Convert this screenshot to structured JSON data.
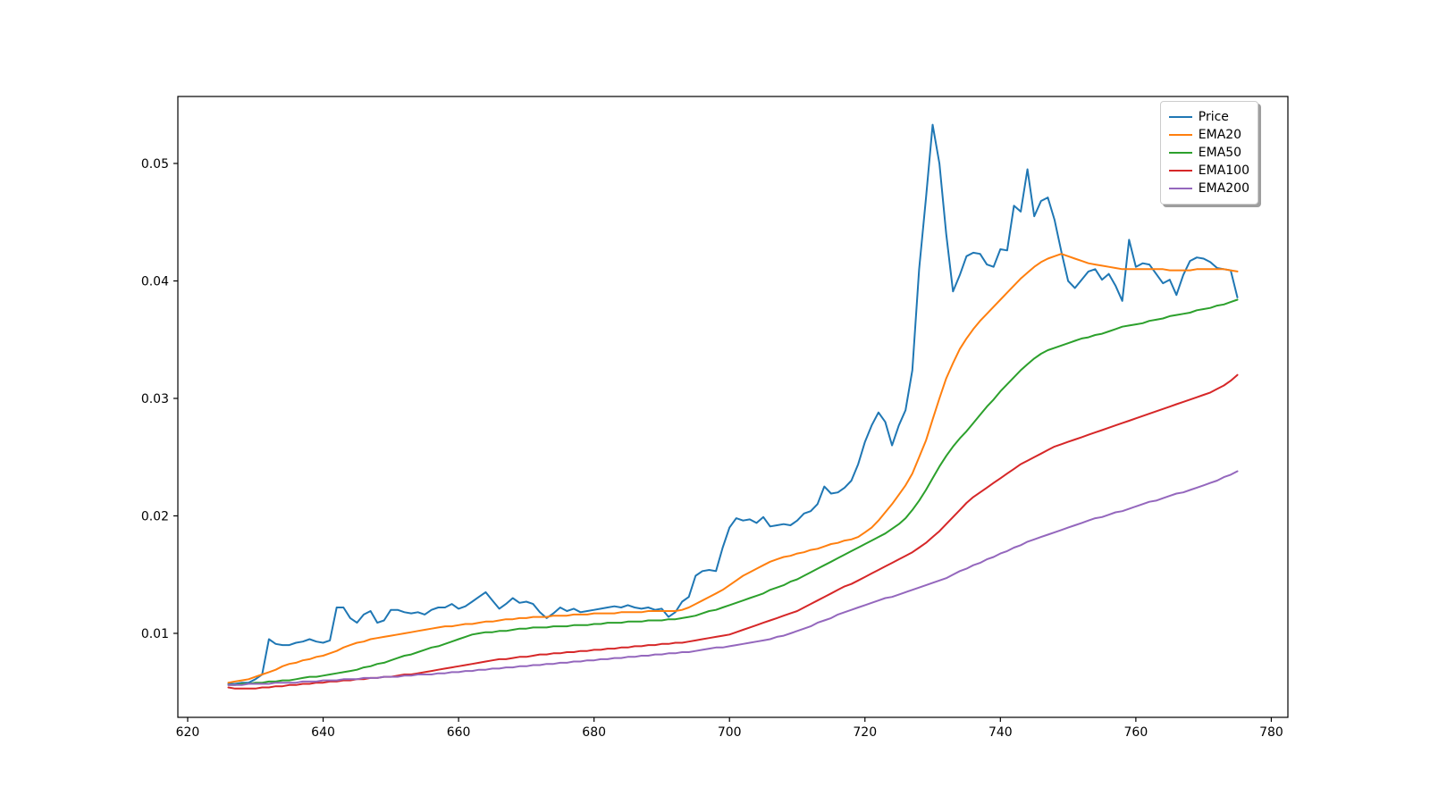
{
  "figure": {
    "background": "#ffffff"
  },
  "chart_data": {
    "type": "line",
    "title": "",
    "xlabel": "",
    "ylabel": "",
    "grid": false,
    "legend_position": "upper right",
    "xlim": [
      618.55,
      782.45
    ],
    "ylim": [
      0.00285,
      0.0557
    ],
    "x_ticks": [
      620,
      640,
      660,
      680,
      700,
      720,
      740,
      760,
      780
    ],
    "y_ticks": [
      0.01,
      0.02,
      0.03,
      0.04,
      0.05
    ],
    "x_start": 626,
    "x_step": 1,
    "series": [
      {
        "name": "Price",
        "color": "#1f77b4",
        "values": [
          0.0057,
          0.0057,
          0.0058,
          0.0058,
          0.0061,
          0.0065,
          0.0095,
          0.0091,
          0.009,
          0.009,
          0.0092,
          0.0093,
          0.0095,
          0.0093,
          0.0092,
          0.0094,
          0.0122,
          0.0122,
          0.0113,
          0.0109,
          0.0116,
          0.0119,
          0.0109,
          0.0111,
          0.012,
          0.012,
          0.0118,
          0.0117,
          0.0118,
          0.0116,
          0.012,
          0.0122,
          0.0122,
          0.0125,
          0.0121,
          0.0123,
          0.0127,
          0.0131,
          0.0135,
          0.0128,
          0.0121,
          0.0125,
          0.013,
          0.0126,
          0.0127,
          0.0125,
          0.0118,
          0.0113,
          0.0117,
          0.0122,
          0.0119,
          0.0121,
          0.0118,
          0.0119,
          0.012,
          0.0121,
          0.0122,
          0.0123,
          0.0122,
          0.0124,
          0.0122,
          0.0121,
          0.0122,
          0.012,
          0.0121,
          0.0114,
          0.0118,
          0.0127,
          0.0131,
          0.0149,
          0.0153,
          0.0154,
          0.0153,
          0.0173,
          0.019,
          0.0198,
          0.0196,
          0.0197,
          0.0194,
          0.0199,
          0.0191,
          0.0192,
          0.0193,
          0.0192,
          0.0196,
          0.0202,
          0.0204,
          0.021,
          0.0225,
          0.0219,
          0.022,
          0.0224,
          0.023,
          0.0244,
          0.0263,
          0.0277,
          0.0288,
          0.028,
          0.026,
          0.0277,
          0.029,
          0.0324,
          0.041,
          0.047,
          0.0533,
          0.05,
          0.044,
          0.0391,
          0.0405,
          0.0421,
          0.0424,
          0.0423,
          0.0414,
          0.0412,
          0.0427,
          0.0426,
          0.0464,
          0.0459,
          0.0495,
          0.0455,
          0.0468,
          0.0471,
          0.0452,
          0.0425,
          0.04,
          0.0394,
          0.0401,
          0.0408,
          0.041,
          0.0401,
          0.0406,
          0.0396,
          0.0383,
          0.0435,
          0.0412,
          0.0415,
          0.0414,
          0.0406,
          0.0398,
          0.0401,
          0.0388,
          0.0405,
          0.0417,
          0.042,
          0.0419,
          0.0416,
          0.0411,
          0.041,
          0.0409,
          0.0386
        ]
      },
      {
        "name": "EMA20",
        "color": "#ff7f0e",
        "values": [
          0.0058,
          0.0059,
          0.006,
          0.0061,
          0.0063,
          0.0065,
          0.0067,
          0.0069,
          0.0072,
          0.0074,
          0.0075,
          0.0077,
          0.0078,
          0.008,
          0.0081,
          0.0083,
          0.0085,
          0.0088,
          0.009,
          0.0092,
          0.0093,
          0.0095,
          0.0096,
          0.0097,
          0.0098,
          0.0099,
          0.01,
          0.0101,
          0.0102,
          0.0103,
          0.0104,
          0.0105,
          0.0106,
          0.0106,
          0.0107,
          0.0108,
          0.0108,
          0.0109,
          0.011,
          0.011,
          0.0111,
          0.0112,
          0.0112,
          0.0113,
          0.0113,
          0.0114,
          0.0114,
          0.0114,
          0.0115,
          0.0115,
          0.0115,
          0.0116,
          0.0116,
          0.0116,
          0.0117,
          0.0117,
          0.0117,
          0.0117,
          0.0118,
          0.0118,
          0.0118,
          0.0118,
          0.0119,
          0.0119,
          0.0119,
          0.0119,
          0.0119,
          0.012,
          0.0122,
          0.0125,
          0.0128,
          0.0131,
          0.0134,
          0.0137,
          0.0141,
          0.0145,
          0.0149,
          0.0152,
          0.0155,
          0.0158,
          0.0161,
          0.0163,
          0.0165,
          0.0166,
          0.0168,
          0.0169,
          0.0171,
          0.0172,
          0.0174,
          0.0176,
          0.0177,
          0.0179,
          0.018,
          0.0182,
          0.0186,
          0.019,
          0.0196,
          0.0203,
          0.021,
          0.0218,
          0.0226,
          0.0236,
          0.025,
          0.0264,
          0.0282,
          0.03,
          0.0317,
          0.033,
          0.0342,
          0.0351,
          0.0359,
          0.0366,
          0.0372,
          0.0378,
          0.0384,
          0.039,
          0.0396,
          0.0402,
          0.0407,
          0.0412,
          0.0416,
          0.0419,
          0.0421,
          0.0423,
          0.0421,
          0.0419,
          0.0417,
          0.0415,
          0.0414,
          0.0413,
          0.0412,
          0.0411,
          0.041,
          0.041,
          0.041,
          0.041,
          0.041,
          0.041,
          0.041,
          0.0409,
          0.0409,
          0.0409,
          0.0409,
          0.041,
          0.041,
          0.041,
          0.041,
          0.041,
          0.0409,
          0.0408
        ]
      },
      {
        "name": "EMA50",
        "color": "#2ca02c",
        "values": [
          0.0056,
          0.0056,
          0.0057,
          0.0057,
          0.0058,
          0.0058,
          0.0059,
          0.0059,
          0.006,
          0.006,
          0.0061,
          0.0062,
          0.0063,
          0.0063,
          0.0064,
          0.0065,
          0.0066,
          0.0067,
          0.0068,
          0.0069,
          0.0071,
          0.0072,
          0.0074,
          0.0075,
          0.0077,
          0.0079,
          0.0081,
          0.0082,
          0.0084,
          0.0086,
          0.0088,
          0.0089,
          0.0091,
          0.0093,
          0.0095,
          0.0097,
          0.0099,
          0.01,
          0.0101,
          0.0101,
          0.0102,
          0.0102,
          0.0103,
          0.0104,
          0.0104,
          0.0105,
          0.0105,
          0.0105,
          0.0106,
          0.0106,
          0.0106,
          0.0107,
          0.0107,
          0.0107,
          0.0108,
          0.0108,
          0.0109,
          0.0109,
          0.0109,
          0.011,
          0.011,
          0.011,
          0.0111,
          0.0111,
          0.0111,
          0.0112,
          0.0112,
          0.0113,
          0.0114,
          0.0115,
          0.0117,
          0.0119,
          0.012,
          0.0122,
          0.0124,
          0.0126,
          0.0128,
          0.013,
          0.0132,
          0.0134,
          0.0137,
          0.0139,
          0.0141,
          0.0144,
          0.0146,
          0.0149,
          0.0152,
          0.0155,
          0.0158,
          0.0161,
          0.0164,
          0.0167,
          0.017,
          0.0173,
          0.0176,
          0.0179,
          0.0182,
          0.0185,
          0.0189,
          0.0193,
          0.0198,
          0.0205,
          0.0213,
          0.0222,
          0.0232,
          0.0242,
          0.0251,
          0.0259,
          0.0266,
          0.0272,
          0.0279,
          0.0286,
          0.0293,
          0.0299,
          0.0306,
          0.0312,
          0.0318,
          0.0324,
          0.0329,
          0.0334,
          0.0338,
          0.0341,
          0.0343,
          0.0345,
          0.0347,
          0.0349,
          0.0351,
          0.0352,
          0.0354,
          0.0355,
          0.0357,
          0.0359,
          0.0361,
          0.0362,
          0.0363,
          0.0364,
          0.0366,
          0.0367,
          0.0368,
          0.037,
          0.0371,
          0.0372,
          0.0373,
          0.0375,
          0.0376,
          0.0377,
          0.0379,
          0.038,
          0.0382,
          0.0384
        ]
      },
      {
        "name": "EMA100",
        "color": "#d62728",
        "values": [
          0.0054,
          0.0053,
          0.0053,
          0.0053,
          0.0053,
          0.0054,
          0.0054,
          0.0055,
          0.0055,
          0.0056,
          0.0056,
          0.0057,
          0.0057,
          0.0058,
          0.0058,
          0.0059,
          0.0059,
          0.006,
          0.006,
          0.0061,
          0.0061,
          0.0062,
          0.0062,
          0.0063,
          0.0063,
          0.0064,
          0.0065,
          0.0065,
          0.0066,
          0.0067,
          0.0068,
          0.0069,
          0.007,
          0.0071,
          0.0072,
          0.0073,
          0.0074,
          0.0075,
          0.0076,
          0.0077,
          0.0078,
          0.0078,
          0.0079,
          0.008,
          0.008,
          0.0081,
          0.0082,
          0.0082,
          0.0083,
          0.0083,
          0.0084,
          0.0084,
          0.0085,
          0.0085,
          0.0086,
          0.0086,
          0.0087,
          0.0087,
          0.0088,
          0.0088,
          0.0089,
          0.0089,
          0.009,
          0.009,
          0.0091,
          0.0091,
          0.0092,
          0.0092,
          0.0093,
          0.0094,
          0.0095,
          0.0096,
          0.0097,
          0.0098,
          0.0099,
          0.0101,
          0.0103,
          0.0105,
          0.0107,
          0.0109,
          0.0111,
          0.0113,
          0.0115,
          0.0117,
          0.0119,
          0.0122,
          0.0125,
          0.0128,
          0.0131,
          0.0134,
          0.0137,
          0.014,
          0.0142,
          0.0145,
          0.0148,
          0.0151,
          0.0154,
          0.0157,
          0.016,
          0.0163,
          0.0166,
          0.0169,
          0.0173,
          0.0177,
          0.0182,
          0.0187,
          0.0193,
          0.0199,
          0.0205,
          0.0211,
          0.0216,
          0.022,
          0.0224,
          0.0228,
          0.0232,
          0.0236,
          0.024,
          0.0244,
          0.0247,
          0.025,
          0.0253,
          0.0256,
          0.0259,
          0.0261,
          0.0263,
          0.0265,
          0.0267,
          0.0269,
          0.0271,
          0.0273,
          0.0275,
          0.0277,
          0.0279,
          0.0281,
          0.0283,
          0.0285,
          0.0287,
          0.0289,
          0.0291,
          0.0293,
          0.0295,
          0.0297,
          0.0299,
          0.0301,
          0.0303,
          0.0305,
          0.0308,
          0.0311,
          0.0315,
          0.032
        ]
      },
      {
        "name": "EMA200",
        "color": "#9467bd",
        "values": [
          0.0056,
          0.0056,
          0.0056,
          0.0057,
          0.0057,
          0.0057,
          0.0057,
          0.0058,
          0.0058,
          0.0058,
          0.0058,
          0.0059,
          0.0059,
          0.0059,
          0.006,
          0.006,
          0.006,
          0.0061,
          0.0061,
          0.0061,
          0.0062,
          0.0062,
          0.0062,
          0.0063,
          0.0063,
          0.0063,
          0.0064,
          0.0064,
          0.0065,
          0.0065,
          0.0065,
          0.0066,
          0.0066,
          0.0067,
          0.0067,
          0.0068,
          0.0068,
          0.0069,
          0.0069,
          0.007,
          0.007,
          0.0071,
          0.0071,
          0.0072,
          0.0072,
          0.0073,
          0.0073,
          0.0074,
          0.0074,
          0.0075,
          0.0075,
          0.0076,
          0.0076,
          0.0077,
          0.0077,
          0.0078,
          0.0078,
          0.0079,
          0.0079,
          0.008,
          0.008,
          0.0081,
          0.0081,
          0.0082,
          0.0082,
          0.0083,
          0.0083,
          0.0084,
          0.0084,
          0.0085,
          0.0086,
          0.0087,
          0.0088,
          0.0088,
          0.0089,
          0.009,
          0.0091,
          0.0092,
          0.0093,
          0.0094,
          0.0095,
          0.0097,
          0.0098,
          0.01,
          0.0102,
          0.0104,
          0.0106,
          0.0109,
          0.0111,
          0.0113,
          0.0116,
          0.0118,
          0.012,
          0.0122,
          0.0124,
          0.0126,
          0.0128,
          0.013,
          0.0131,
          0.0133,
          0.0135,
          0.0137,
          0.0139,
          0.0141,
          0.0143,
          0.0145,
          0.0147,
          0.015,
          0.0153,
          0.0155,
          0.0158,
          0.016,
          0.0163,
          0.0165,
          0.0168,
          0.017,
          0.0173,
          0.0175,
          0.0178,
          0.018,
          0.0182,
          0.0184,
          0.0186,
          0.0188,
          0.019,
          0.0192,
          0.0194,
          0.0196,
          0.0198,
          0.0199,
          0.0201,
          0.0203,
          0.0204,
          0.0206,
          0.0208,
          0.021,
          0.0212,
          0.0213,
          0.0215,
          0.0217,
          0.0219,
          0.022,
          0.0222,
          0.0224,
          0.0226,
          0.0228,
          0.023,
          0.0233,
          0.0235,
          0.0238
        ]
      }
    ]
  }
}
